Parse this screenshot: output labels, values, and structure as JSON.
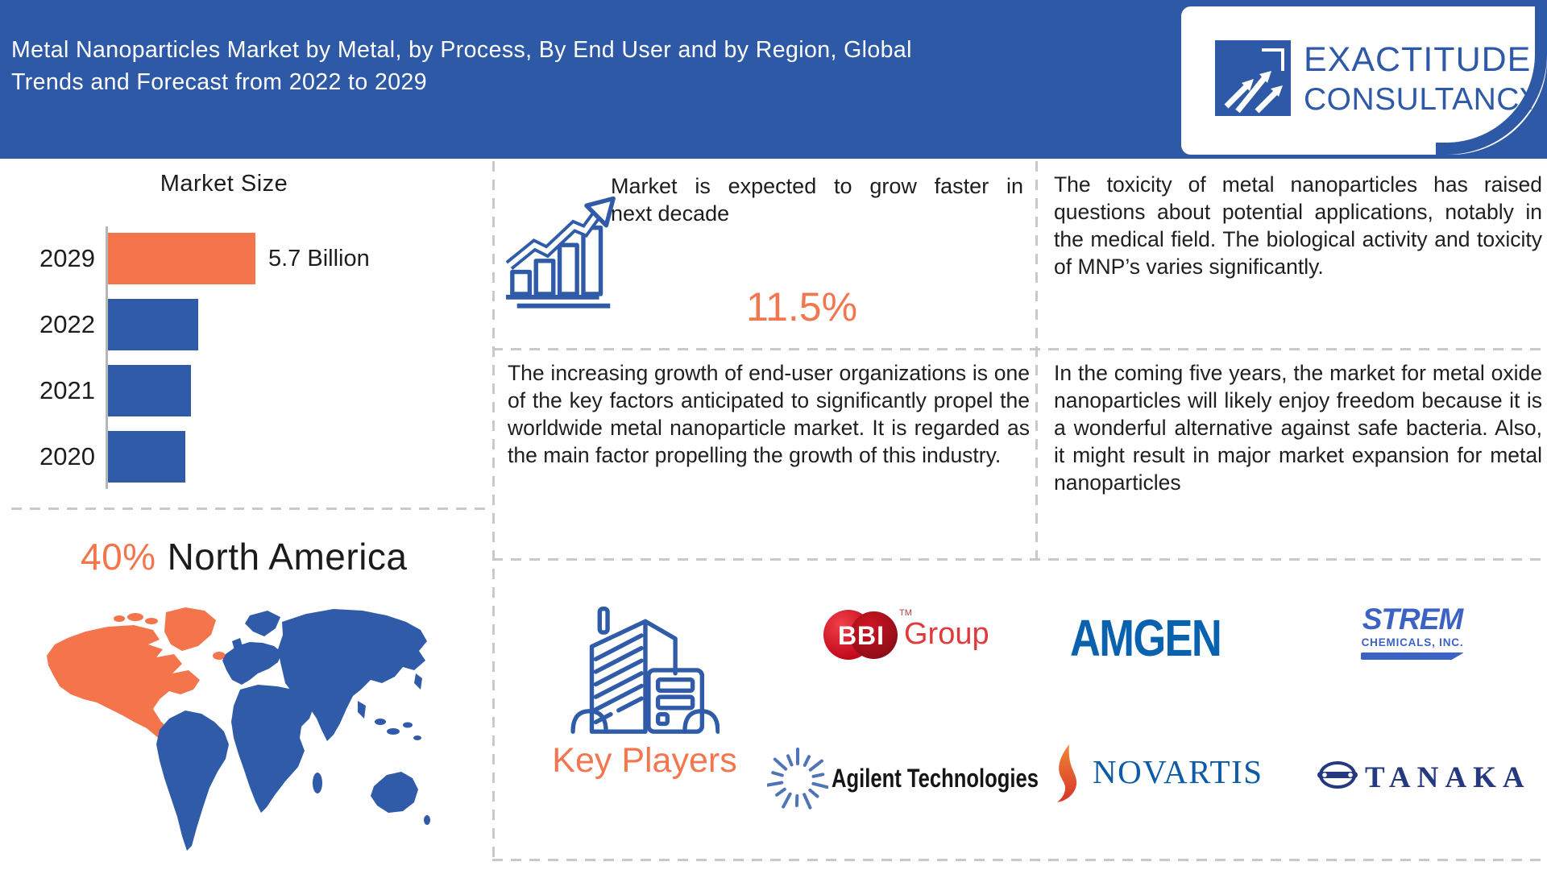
{
  "header": {
    "title": "Metal Nanoparticles Market by Metal, by Process, By End User and by Region, Global Trends and Forecast from 2022 to 2029",
    "brand": {
      "name_line1": "EXACTITUDE",
      "name_line2": "CONSULTANCY"
    }
  },
  "chart_data": {
    "type": "bar",
    "orientation": "horizontal",
    "title": "Market Size",
    "categories": [
      "2029",
      "2022",
      "2021",
      "2020"
    ],
    "values": [
      5.7,
      3.5,
      3.2,
      3.0
    ],
    "unit": "USD Billion",
    "value_labels": {
      "2029": "5.7 Billion"
    },
    "highlight_category": "2029",
    "bar_colors": {
      "highlight": "#F4744B",
      "default": "#2F5BA9"
    },
    "xlim": [
      0,
      6.2
    ],
    "grid": false,
    "legend": "none"
  },
  "growth": {
    "line1": "Market is expected to grow faster in",
    "line2": "next decade",
    "rate": "11.5%"
  },
  "insights": {
    "toxicity": "The toxicity of metal nanoparticles has raised questions about potential applications, notably in the medical field. The biological activity and toxicity of MNP’s varies significantly.",
    "end_user": "The increasing growth of end-user organizations is one of the key factors anticipated to significantly propel the worldwide metal nanoparticle market. It is regarded as the main factor propelling the growth of this industry.",
    "outlook": "In the coming five years, the market for metal oxide nanoparticles will likely enjoy freedom because it is a wonderful alternative against safe bacteria. Also, it might result in major market expansion for metal nanoparticles"
  },
  "region": {
    "share": "40%",
    "name": "North America",
    "map_highlight": "North America"
  },
  "key_players": {
    "title": "Key Players",
    "companies": [
      "BBI Group",
      "AMGEN",
      "Strem Chemicals, Inc.",
      "Agilent Technologies",
      "Novartis",
      "Tanaka"
    ]
  },
  "logos": {
    "bbi_initials": "BBI",
    "bbi_tm": "TM",
    "bbi_group": "Group",
    "amgen": "AMGEN",
    "strem_name": "STREM",
    "strem_sub": "CHEMICALS, INC.",
    "agilent": "Agilent Technologies",
    "novartis": "NOVARTIS",
    "tanaka": "TANAKA"
  },
  "colors": {
    "header_blue": "#2E59A6",
    "bar_blue": "#2F5BA9",
    "accent_orange": "#F4744B",
    "cagr_orange": "#F4764F",
    "dash_gray": "#C9C9C9",
    "amgen_blue": "#0A61AE",
    "bbi_red": "#C3081C",
    "strem_blue": "#3C63C4",
    "novartis_blue": "#0D5AA7",
    "tanaka_navy": "#24397F"
  },
  "icons": {
    "brand": "arrows-up-right-icon",
    "growth": "growth-bar-chart-arrow-icon",
    "key_players": "office-building-icon",
    "map": "world-map",
    "agilent": "starburst-icon",
    "novartis": "flame-icon",
    "tanaka": "globe-oval-icon"
  }
}
